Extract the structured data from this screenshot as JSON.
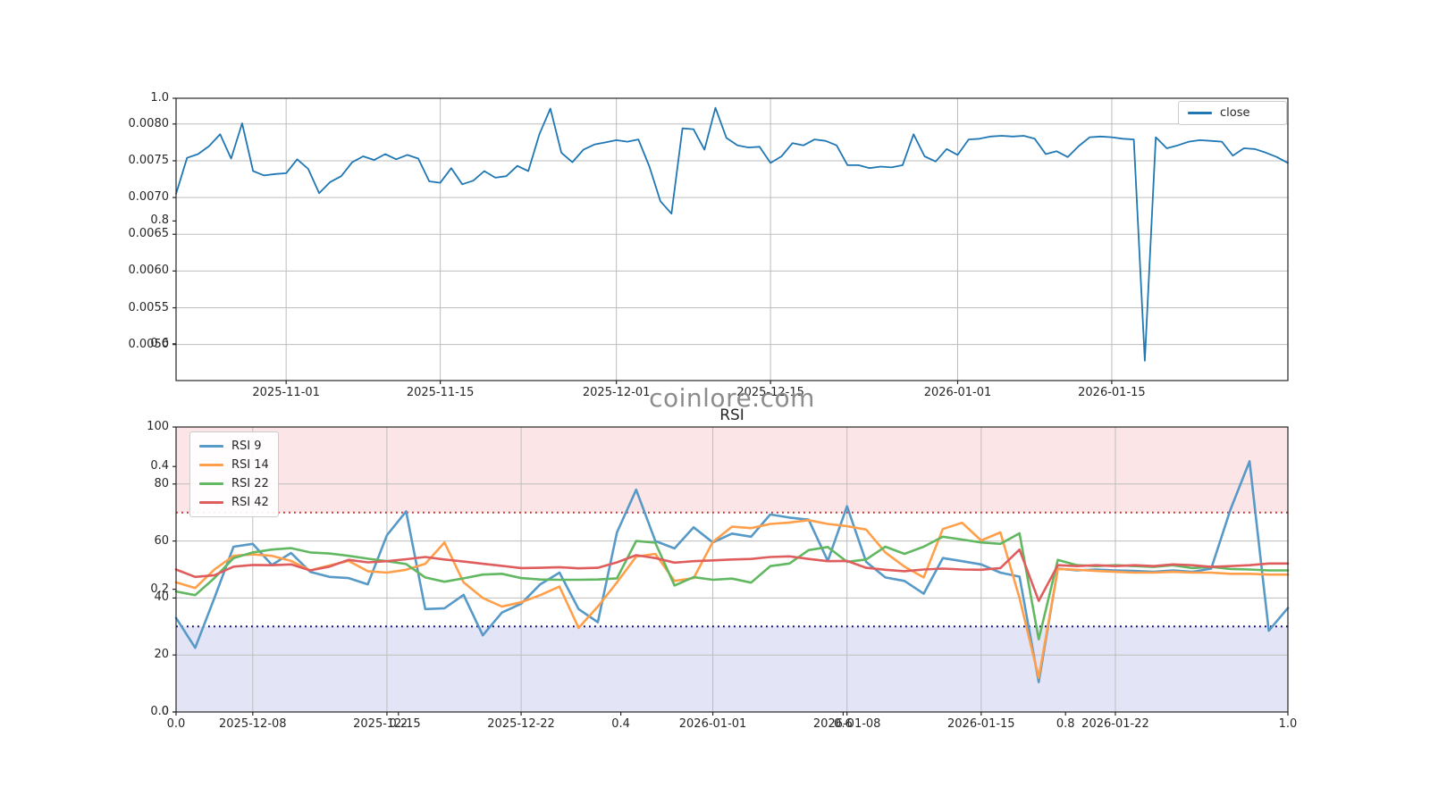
{
  "watermark": "coinlore.com",
  "colors": {
    "close": "#1f77b4",
    "rsi9": "#5799c7",
    "rsi14": "#ff9f4a",
    "rsi22": "#61b861",
    "rsi42": "#e05d5e",
    "grid": "#bdbdbd",
    "frame": "#262626",
    "band_overbought": "#fbe5e6",
    "band_oversold": "#e4e4f7",
    "overbought_line": "#d62728",
    "oversold_line": "#00008b"
  },
  "hidden_axis": {
    "y_tick_labels": [
      "1.0",
      "0.8",
      "0.6",
      "0.4",
      "0.2",
      "0.0"
    ],
    "x_tick_labels": [
      "0.0",
      "0.2",
      "0.4",
      "0.6",
      "0.8",
      "1.0"
    ]
  },
  "chart_data": [
    {
      "type": "line",
      "title": "",
      "legend": [
        {
          "label": "close",
          "color_key": "close"
        }
      ],
      "legend_position": "upper right",
      "x_start_date": "2025-10-22",
      "x_tick_labels": [
        "2025-11-01",
        "2025-11-15",
        "2025-12-01",
        "2025-12-15",
        "2026-01-01",
        "2026-01-15"
      ],
      "x_tick_indices": [
        10,
        24,
        40,
        54,
        71,
        85
      ],
      "y_tick_labels": [
        "0.0080",
        "0.0075",
        "0.0070",
        "0.0065",
        "0.0060",
        "0.0055",
        "0.0050"
      ],
      "ylim": [
        0.00451,
        0.00835
      ],
      "grid": true,
      "series": [
        {
          "name": "close",
          "color_key": "close",
          "values": [
            0.00705,
            0.00754,
            0.00759,
            0.0077,
            0.00786,
            0.00753,
            0.00801,
            0.00736,
            0.0073,
            0.00732,
            0.00733,
            0.00752,
            0.00739,
            0.00706,
            0.00721,
            0.00729,
            0.00748,
            0.00756,
            0.00751,
            0.00759,
            0.00752,
            0.00758,
            0.00753,
            0.00722,
            0.0072,
            0.0074,
            0.00718,
            0.00723,
            0.00736,
            0.00727,
            0.00729,
            0.00743,
            0.00736,
            0.00786,
            0.00821,
            0.00761,
            0.00748,
            0.00765,
            0.00772,
            0.00775,
            0.00778,
            0.00776,
            0.00779,
            0.00742,
            0.00695,
            0.00678,
            0.00794,
            0.00793,
            0.00765,
            0.00822,
            0.00781,
            0.00771,
            0.00768,
            0.00769,
            0.00747,
            0.00756,
            0.00774,
            0.00771,
            0.00779,
            0.00777,
            0.00771,
            0.00744,
            0.00744,
            0.0074,
            0.00742,
            0.00741,
            0.00744,
            0.00786,
            0.00756,
            0.00749,
            0.00766,
            0.00758,
            0.00779,
            0.0078,
            0.00783,
            0.00784,
            0.00783,
            0.00784,
            0.0078,
            0.00759,
            0.00763,
            0.00755,
            0.0077,
            0.00782,
            0.00783,
            0.00782,
            0.0078,
            0.00779,
            0.00478,
            0.00782,
            0.00767,
            0.00771,
            0.00776,
            0.00778,
            0.00777,
            0.00776,
            0.00757,
            0.00767,
            0.00766,
            0.00761,
            0.00755,
            0.00747
          ]
        }
      ]
    },
    {
      "type": "line",
      "title": "RSI",
      "legend": [
        {
          "label": "RSI 9",
          "color_key": "rsi9"
        },
        {
          "label": "RSI 14",
          "color_key": "rsi14"
        },
        {
          "label": "RSI 22",
          "color_key": "rsi22"
        },
        {
          "label": "RSI 42",
          "color_key": "rsi42"
        }
      ],
      "legend_position": "upper left",
      "x_start_date": "2025-12-04",
      "x_tick_labels": [
        "2025-12-08",
        "2025-12-15",
        "2025-12-22",
        "2026-01-01",
        "2026-01-08",
        "2026-01-15",
        "2026-01-22"
      ],
      "x_tick_indices": [
        4,
        11,
        18,
        28,
        35,
        42,
        49
      ],
      "y_tick_labels": [
        "100",
        "80",
        "60",
        "40",
        "20",
        "0"
      ],
      "ylim": [
        0,
        100
      ],
      "grid": true,
      "overbought_level": 70,
      "oversold_level": 30,
      "series": [
        {
          "name": "RSI 9",
          "color_key": "rsi9",
          "values": [
            33,
            22.5,
            40,
            58,
            59,
            51.6,
            55.8,
            49.2,
            47.4,
            47,
            44.8,
            62,
            70.4,
            36.1,
            36.4,
            41.1,
            26.9,
            34.9,
            38,
            44.8,
            48.9,
            36.1,
            31.5,
            63,
            78,
            60,
            57.4,
            64.8,
            59.5,
            62.6,
            61.5,
            69.3,
            68.2,
            67.5,
            53,
            72.2,
            52.7,
            47.2,
            46,
            41.5,
            54,
            52.9,
            51.8,
            48.9,
            47.5,
            10.5,
            50.3,
            49.7,
            50,
            49.7,
            49.5,
            49.2,
            49.7,
            49.2,
            50.3,
            71,
            88,
            28.5,
            36.5
          ]
        },
        {
          "name": "RSI 14",
          "color_key": "rsi14",
          "values": [
            45.5,
            43.5,
            50,
            54.8,
            55.3,
            54.8,
            53,
            49.7,
            51.4,
            53,
            49.4,
            48.9,
            49.9,
            52,
            59.5,
            45.5,
            40,
            37,
            38.5,
            41,
            44,
            29.5,
            37,
            45.5,
            54.5,
            55.5,
            46,
            47,
            59.7,
            65,
            64.5,
            66,
            66.5,
            67.3,
            66,
            65.2,
            64,
            56,
            51,
            47.2,
            64.2,
            66.4,
            60.2,
            63,
            40,
            12,
            50.2,
            49.9,
            49.5,
            49.2,
            48.9,
            48.9,
            49.2,
            48.9,
            48.9,
            48.5,
            48.5,
            48.2,
            48.2
          ]
        },
        {
          "name": "RSI 22",
          "color_key": "rsi22",
          "values": [
            42.3,
            41,
            47,
            54,
            56,
            57,
            57.5,
            56,
            55.6,
            54.8,
            53.8,
            52.9,
            51.9,
            47.2,
            45.7,
            46.9,
            48.2,
            48.5,
            47,
            46.5,
            46.4,
            46.4,
            46.5,
            46.9,
            60,
            59.4,
            44.4,
            47.3,
            46.4,
            46.8,
            45.4,
            51.2,
            52.1,
            56.8,
            57.9,
            52.7,
            53.5,
            58,
            55.5,
            58,
            61.5,
            60.5,
            59.5,
            59,
            62.7,
            25.5,
            53.4,
            51.5,
            51.2,
            51.5,
            51.2,
            50.9,
            51.5,
            50.5,
            50.9,
            50.2,
            50,
            49.7,
            49.7
          ]
        },
        {
          "name": "RSI 42",
          "color_key": "rsi42",
          "values": [
            50,
            47.4,
            48,
            51,
            51.6,
            51.5,
            51.8,
            49.7,
            51,
            53.4,
            52.5,
            52.9,
            53.6,
            54.4,
            53.5,
            52.8,
            52,
            51.3,
            50.5,
            50.6,
            50.8,
            50.4,
            50.6,
            52.5,
            55,
            54,
            52.4,
            52.9,
            53.2,
            53.5,
            53.7,
            54.4,
            54.6,
            53.7,
            52.9,
            53,
            50.6,
            49.9,
            49.4,
            50,
            50.3,
            50,
            49.9,
            50.5,
            57,
            39,
            51.5,
            51.2,
            51.5,
            51.2,
            51.5,
            51.2,
            51.8,
            51.5,
            50.9,
            51.2,
            51.5,
            52.1,
            52.1
          ]
        }
      ]
    }
  ]
}
